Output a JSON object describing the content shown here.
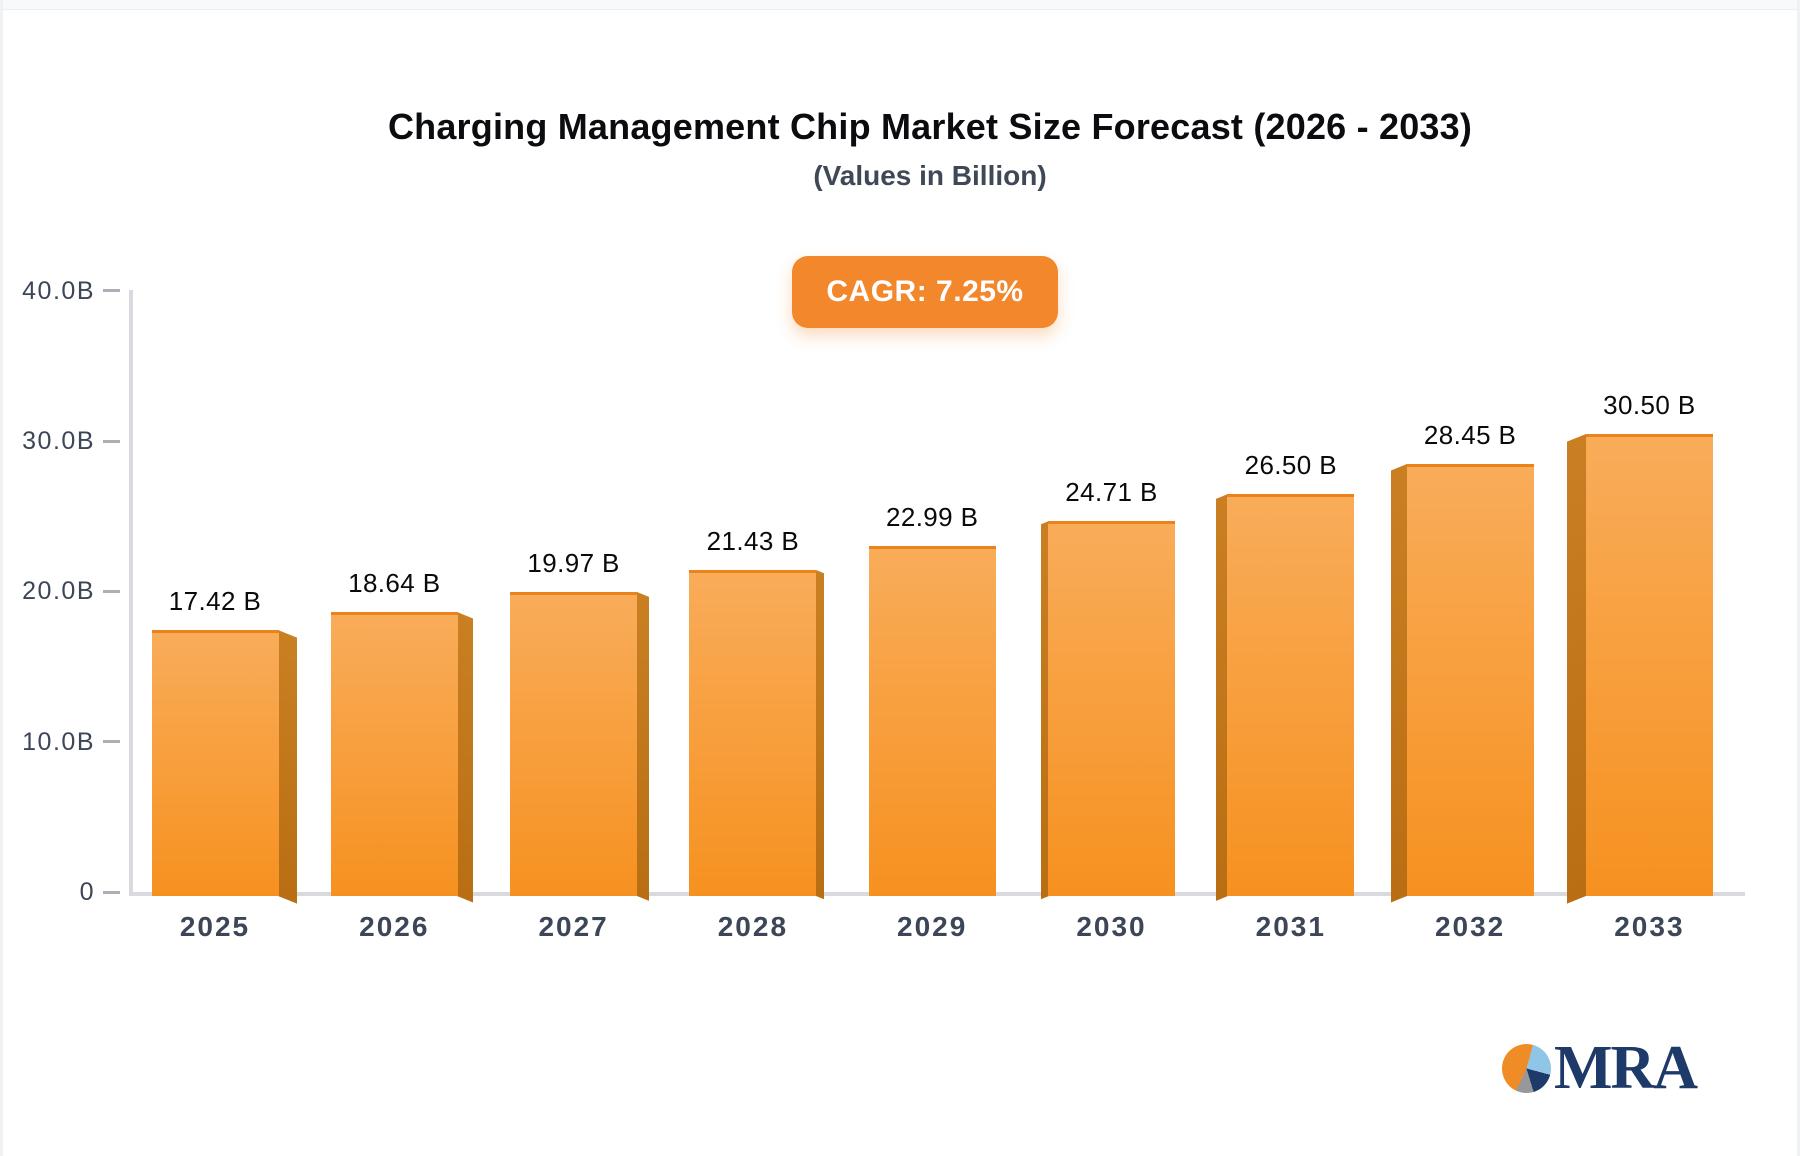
{
  "title": "Charging Management Chip Market Size Forecast (2026 - 2033)",
  "subtitle": "(Values in Billion)",
  "badge": {
    "label": "CAGR: 7.25%"
  },
  "chart_data": {
    "type": "bar",
    "title": "Charging Management Chip Market Size Forecast (2026 - 2033)",
    "subtitle": "(Values in Billion)",
    "categories": [
      "2025",
      "2026",
      "2027",
      "2028",
      "2029",
      "2030",
      "2031",
      "2032",
      "2033"
    ],
    "values": [
      17.42,
      18.64,
      19.97,
      21.43,
      22.99,
      24.71,
      26.5,
      28.45,
      30.5
    ],
    "bar_labels": [
      "17.42 B",
      "18.64 B",
      "19.97 B",
      "21.43 B",
      "22.99 B",
      "24.71 B",
      "26.50 B",
      "28.45 B",
      "30.50 B"
    ],
    "xlabel": "",
    "ylabel": "",
    "ylim": [
      0,
      40
    ],
    "yticks": [
      {
        "value": 40,
        "label": "40.0B"
      },
      {
        "value": 30,
        "label": "30.0B"
      },
      {
        "value": 20,
        "label": "20.0B"
      },
      {
        "value": 10,
        "label": "10.0B"
      },
      {
        "value": 0,
        "label": "0"
      }
    ],
    "grid": false,
    "legend": null,
    "annotation": "CAGR: 7.25%"
  },
  "colors": {
    "bar_top": "#f9ac59",
    "bar_bottom": "#f69120",
    "bar_top_edge": "#ea831c",
    "bar_side_top": "#cb7f23",
    "bar_side_bottom": "#b96e13",
    "badge_bg": "#f2872b",
    "axis_line": "#d8dae0",
    "tick_dash": "#abafb8",
    "axis_label": "#3c4657",
    "value_label": "#0a0a0c",
    "title": "#0b0c0f",
    "subtitle": "#3f4856",
    "logo_navy": "#1e3a68",
    "logo_lightblue": "#8fc6e6",
    "logo_gray": "#97989c",
    "logo_orange": "#ef8c26"
  },
  "logo": {
    "text": "MRA",
    "pie_slices": [
      "light-blue",
      "navy",
      "gray",
      "orange"
    ]
  }
}
